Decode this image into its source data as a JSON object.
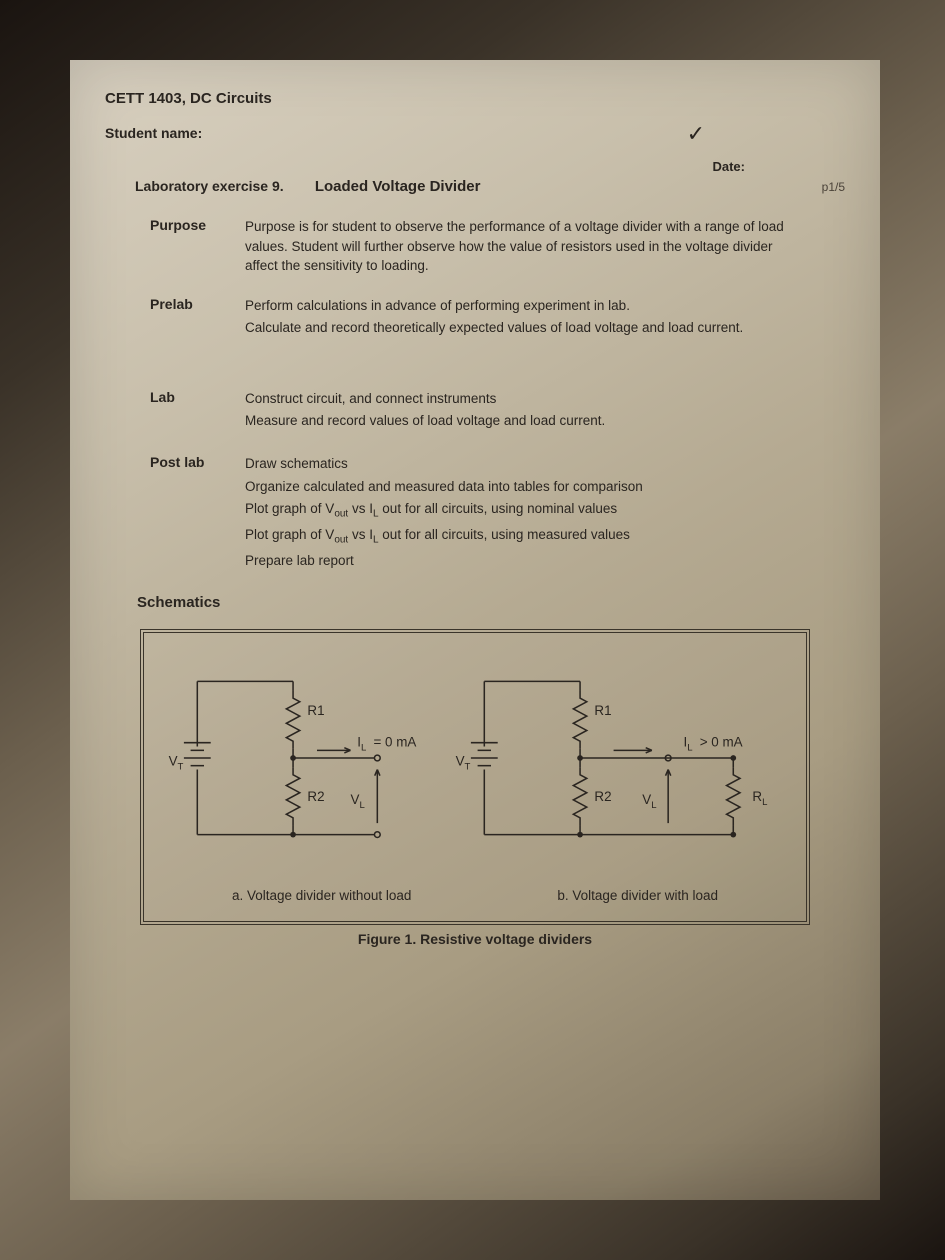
{
  "course": "CETT 1403, DC Circuits",
  "student_label": "Student name:",
  "date_label": "Date:",
  "exercise_label": "Laboratory exercise 9.",
  "exercise_title": "Loaded Voltage Divider",
  "page_num": "p1/5",
  "sections": {
    "purpose": {
      "label": "Purpose",
      "text": "Purpose is for student to observe the performance of a voltage divider with a range of load values. Student will further observe how the value of resistors used in the voltage divider affect the sensitivity to loading."
    },
    "prelab": {
      "label": "Prelab",
      "line1": "Perform calculations in advance of performing experiment in lab.",
      "line2": "Calculate and record theoretically expected values of load voltage and load current."
    },
    "lab": {
      "label": "Lab",
      "line1": "Construct circuit, and connect instruments",
      "line2": "Measure and record values of load voltage and load current."
    },
    "postlab": {
      "label": "Post lab",
      "line1": "Draw schematics",
      "line2": "Organize calculated and measured data into tables for comparison",
      "line3_pre": "Plot graph of V",
      "line3_sub1": "out",
      "line3_mid": " vs I",
      "line3_sub2": "L",
      "line3_post": " out for all circuits, using nominal values",
      "line4_pre": "Plot graph of V",
      "line4_sub1": "out",
      "line4_mid": " vs I",
      "line4_sub2": "L",
      "line4_post": " out for all circuits, using measured values",
      "line5": "Prepare lab report"
    }
  },
  "schematics_label": "Schematics",
  "figure": {
    "caption_a": "a. Voltage divider without load",
    "caption_b": "b. Voltage divider with load",
    "title": "Figure 1. Resistive voltage dividers",
    "stroke_color": "#2a2520",
    "stroke_width": 1.6,
    "labels": {
      "VT": "V",
      "VT_sub": "T",
      "R1": "R1",
      "R2": "R2",
      "RL": "R",
      "RL_sub": "L",
      "VL": "V",
      "VL_sub": "L",
      "IL_a_pre": "I",
      "IL_a_sub": "L",
      "IL_a_post": " = 0 mA",
      "IL_b_pre": "I",
      "IL_b_sub": "L",
      "IL_b_post": " > 0 mA"
    }
  }
}
